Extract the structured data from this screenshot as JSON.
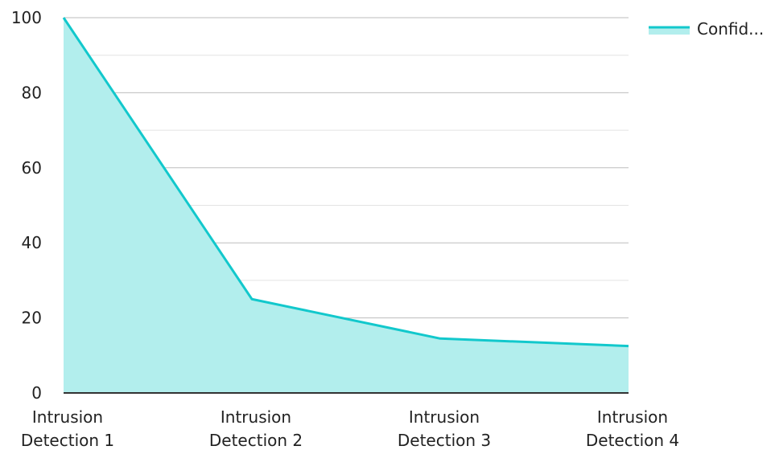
{
  "chart_data": {
    "type": "area",
    "categories": [
      "Intrusion Detection 1",
      "Intrusion Detection 2",
      "Intrusion Detection 3",
      "Intrusion Detection 4"
    ],
    "category_lines": [
      [
        "Intrusion",
        "Detection 1"
      ],
      [
        "Intrusion",
        "Detection 2"
      ],
      [
        "Intrusion",
        "Detection 3"
      ],
      [
        "Intrusion",
        "Detection 4"
      ]
    ],
    "series": [
      {
        "name": "Confid...",
        "values": [
          100,
          25,
          14.5,
          12.5
        ]
      }
    ],
    "ylim": [
      0,
      100
    ],
    "yticks": [
      0,
      20,
      40,
      60,
      80,
      100
    ],
    "ytick_labels": [
      "0",
      "20",
      "40",
      "60",
      "80",
      "100"
    ],
    "grid": true,
    "legend": "top-right",
    "colors": {
      "line": "#12c8cc",
      "fill": "#b2eeed",
      "grid": "#c8c8c8",
      "axis": "#333333"
    }
  }
}
